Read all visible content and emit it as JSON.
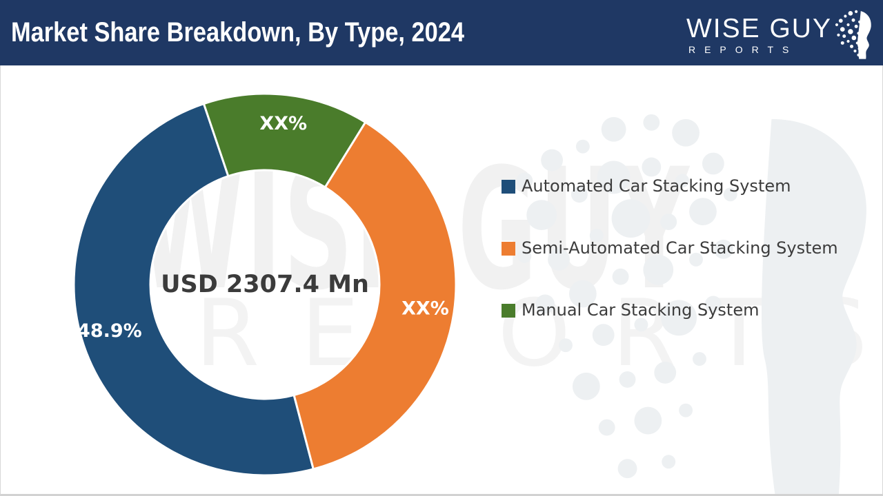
{
  "header": {
    "title": "Market Share Breakdown, By Type, 2024",
    "bg_color": "#1F3864",
    "logo": {
      "wordmark": "WISE GUY",
      "subtext": "REPORTS"
    }
  },
  "chart_data": {
    "type": "pie",
    "variant": "donut",
    "title": "Market Share Breakdown, By Type, 2024",
    "center_label": "USD 2307.4 Mn",
    "legend_position": "right",
    "grid": false,
    "inner_radius_ratio": 0.6,
    "start_angle_clockwise_from_top_deg": 165.3,
    "clockwise_draw_order": [
      0,
      2,
      1
    ],
    "segments": [
      {
        "name": "Automated Car Stacking System",
        "label": "48.9%",
        "value_pct": 48.9,
        "value_shown": true,
        "color": "#1F4E79"
      },
      {
        "name": "Semi-Automated Car Stacking System",
        "label": "XX%",
        "value_pct": 37.1,
        "value_shown": false,
        "color": "#ED7D31"
      },
      {
        "name": "Manual Car Stacking System",
        "label": "XX%",
        "value_pct": 14.0,
        "value_shown": false,
        "color": "#4A7C2B"
      }
    ],
    "note": "Segments labeled XX% are masked in the figure; their value_pct is estimated from measured arc angles."
  },
  "watermark": {
    "wordmark": "WISE GUY",
    "subtext": "REPORTS"
  },
  "colors": {
    "header_bg": "#1F3864",
    "center_text": "#3B3B3B",
    "legend_text": "#3C3C3C",
    "slice_label": "#FFFFFF",
    "watermark_gray": "#F1F1F1",
    "border_gray": "#D7D7D7"
  }
}
